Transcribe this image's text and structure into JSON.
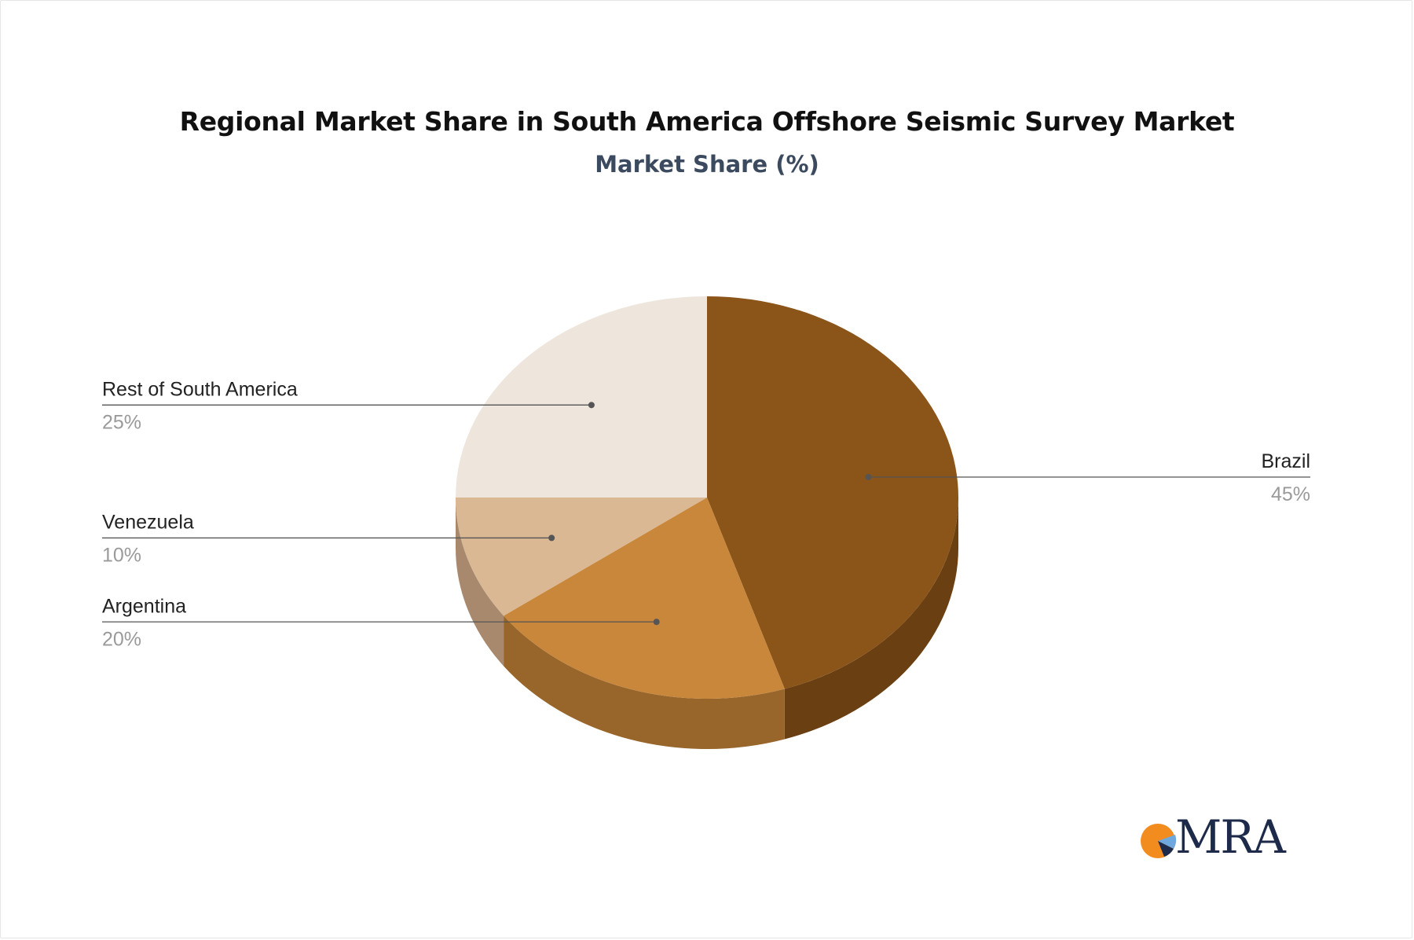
{
  "chart_data": {
    "type": "pie",
    "title": "Regional Market Share in South America Offshore Seismic Survey Market",
    "subtitle": "Market Share (%)",
    "slices": [
      {
        "label": "Brazil",
        "value": 45,
        "value_label": "45%",
        "color": "#8B5419",
        "side_color": "#6A3F12"
      },
      {
        "label": "Argentina",
        "value": 20,
        "value_label": "20%",
        "color": "#C8873B",
        "side_color": "#98652B"
      },
      {
        "label": "Venezuela",
        "value": 10,
        "value_label": "10%",
        "color": "#D9B893",
        "side_color": "#A8896D"
      },
      {
        "label": "Rest of South America",
        "value": 25,
        "value_label": "25%",
        "color": "#EEE5DC",
        "side_color": "#C9BFB5"
      }
    ],
    "legend": "callout-labels"
  },
  "logo": {
    "text": "MRA",
    "colors": {
      "orange": "#F28C1E",
      "navy": "#1D2A4A",
      "blue": "#6FA8DC"
    }
  }
}
